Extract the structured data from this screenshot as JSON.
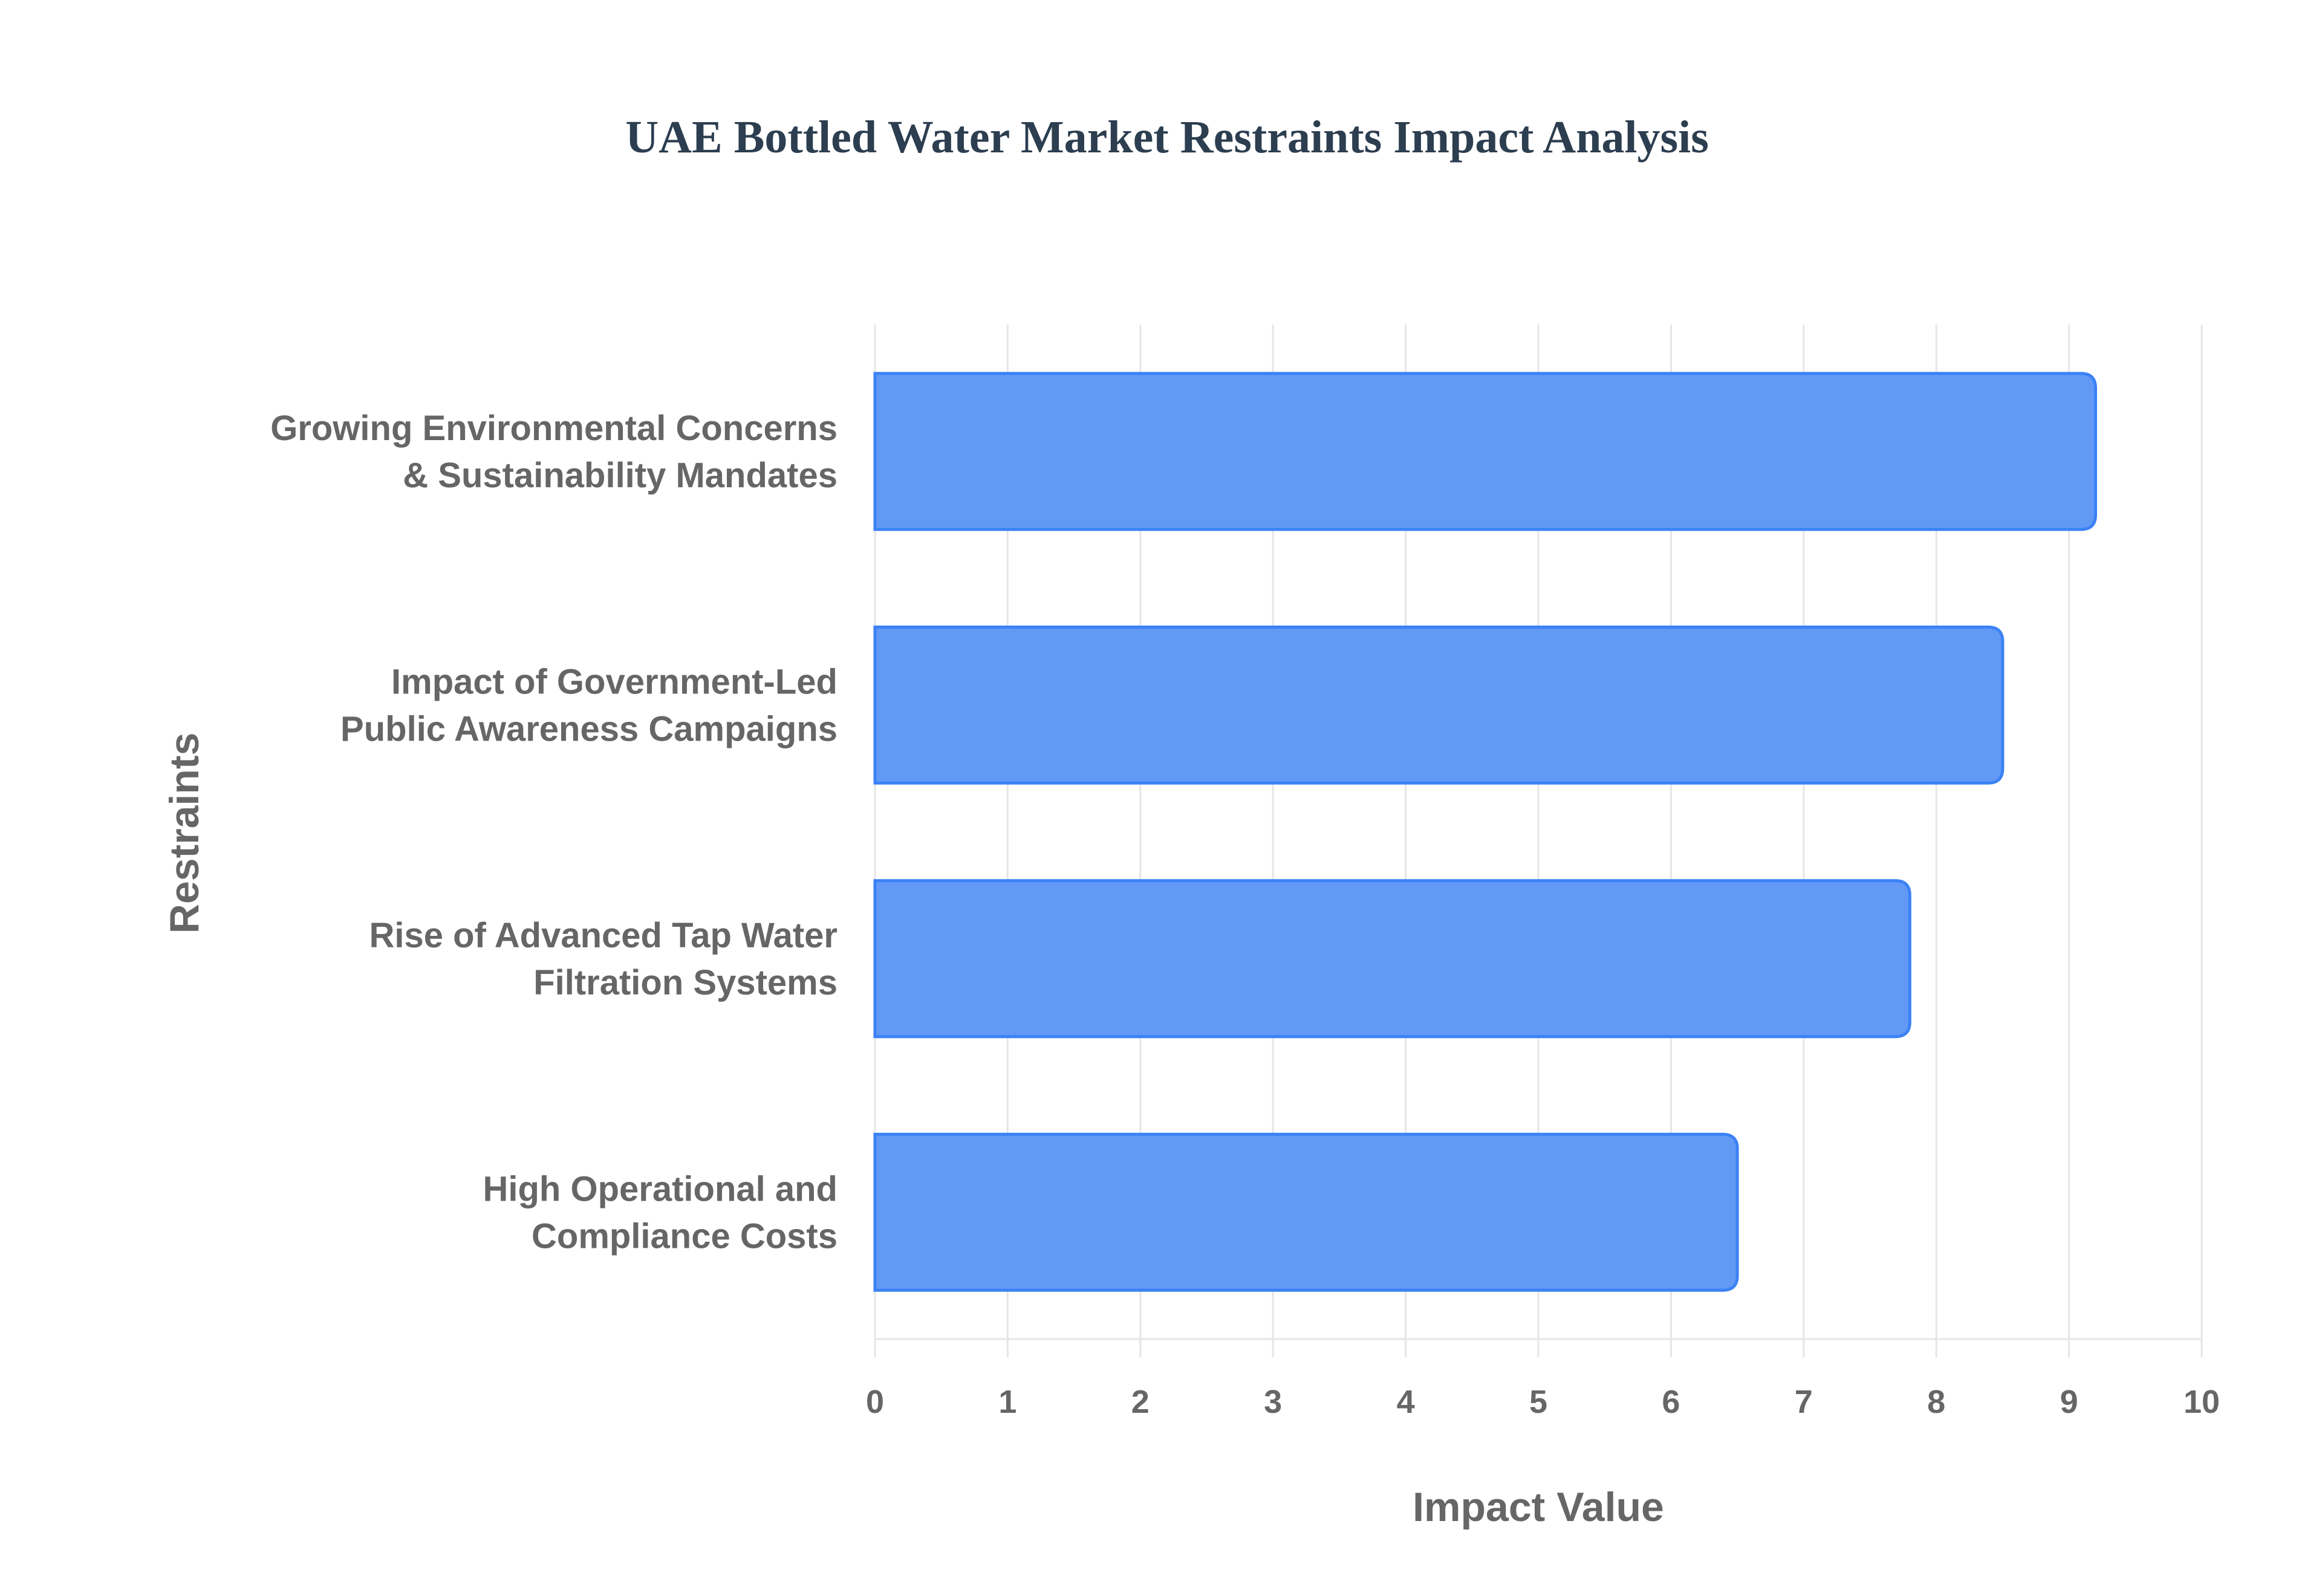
{
  "chart_data": {
    "type": "bar",
    "orientation": "horizontal",
    "title": "UAE Bottled Water Market Restraints Impact Analysis",
    "xlabel": "Impact Value",
    "ylabel": "Restraints",
    "xlim": [
      0,
      10
    ],
    "xticks": [
      "0",
      "1",
      "2",
      "3",
      "4",
      "5",
      "6",
      "7",
      "8",
      "9",
      "10"
    ],
    "grid": true,
    "categories": [
      [
        "Growing Environmental Concerns",
        "& Sustainability Mandates"
      ],
      [
        "Impact of Government-Led",
        "Public Awareness Campaigns"
      ],
      [
        "Rise of Advanced Tap Water",
        "Filtration Systems"
      ],
      [
        "High Operational and",
        "Compliance Costs"
      ]
    ],
    "values": [
      9.2,
      8.5,
      7.8,
      6.5
    ],
    "colors": {
      "bar_fill": "#6199f5",
      "bar_stroke": "#3b82f6",
      "grid": "#e5e5e5",
      "text": "#666666",
      "title": "#2c3e50"
    }
  }
}
